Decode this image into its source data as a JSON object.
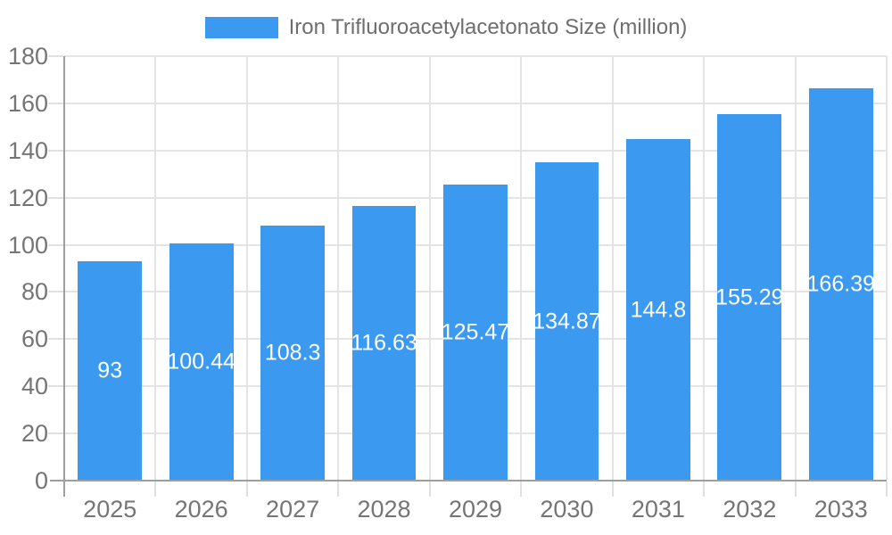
{
  "chart_data": {
    "type": "bar",
    "title": "Iron Trifluoroacetylacetonato Size (million)",
    "categories": [
      "2025",
      "2026",
      "2027",
      "2028",
      "2029",
      "2030",
      "2031",
      "2032",
      "2033"
    ],
    "values": [
      93,
      100.44,
      108.3,
      116.63,
      125.47,
      134.87,
      144.8,
      155.29,
      166.39
    ],
    "value_labels": [
      "93",
      "100.44",
      "108.3",
      "116.63",
      "125.47",
      "134.87",
      "144.8",
      "155.29",
      "166.39"
    ],
    "xlabel": "",
    "ylabel": "",
    "ylim": [
      0,
      180
    ],
    "yticks": [
      0,
      20,
      40,
      60,
      80,
      100,
      120,
      140,
      160,
      180
    ],
    "grid": true,
    "legend_position": "top",
    "bar_width_fraction": 0.7,
    "colors": {
      "bar": "#3B99F0",
      "value_label": "#FFFFFF",
      "grid_line": "#E4E4E4",
      "tick_line": "#E0E0E0",
      "axis_line": "#9E9E9E",
      "axis_text": "#757575",
      "legend_text": "#6E6E6E",
      "background": "#FFFFFF"
    }
  }
}
